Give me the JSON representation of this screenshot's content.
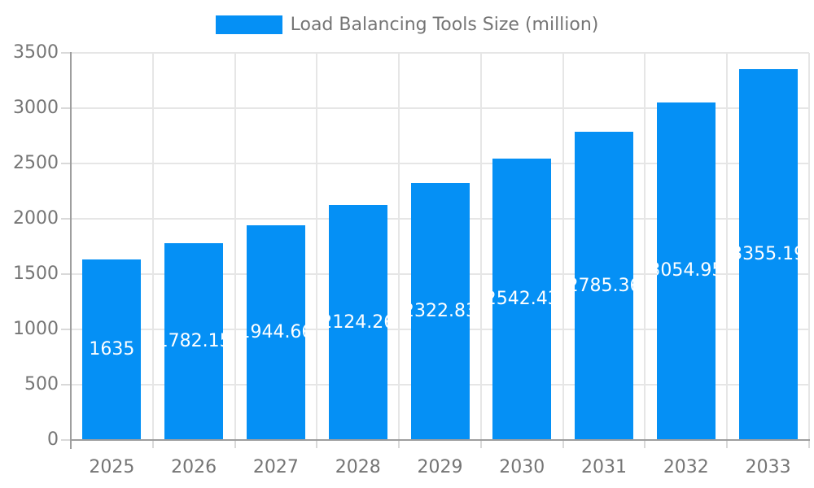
{
  "legend": {
    "label": "Load Balancing Tools Size (million)"
  },
  "chart_data": {
    "type": "bar",
    "title": "Load Balancing Tools Size (million)",
    "categories": [
      "2025",
      "2026",
      "2027",
      "2028",
      "2029",
      "2030",
      "2031",
      "2032",
      "2033"
    ],
    "values": [
      1635,
      1782.15,
      1944.66,
      2124.26,
      2322.83,
      2542.43,
      2785.36,
      3054.95,
      3355.19
    ],
    "bar_labels": [
      "1635",
      "1782.15",
      "1944.66",
      "2124.26",
      "2322.83",
      "2542.43",
      "2785.36",
      "3054.95",
      "3355.19"
    ],
    "xlabel": "",
    "ylabel": "",
    "ylim": [
      0,
      3500
    ],
    "yticks": [
      0,
      500,
      1000,
      1500,
      2000,
      2500,
      3000,
      3500
    ],
    "grid": true,
    "legend_position": "top",
    "colors": {
      "bar": "#0590F5",
      "bar_value_text": "#FFFFFF",
      "axis_text": "#757575",
      "gridline": "#E6E6E6",
      "axis_line": "#9E9E9E",
      "tick": "#D9D9D9"
    }
  }
}
